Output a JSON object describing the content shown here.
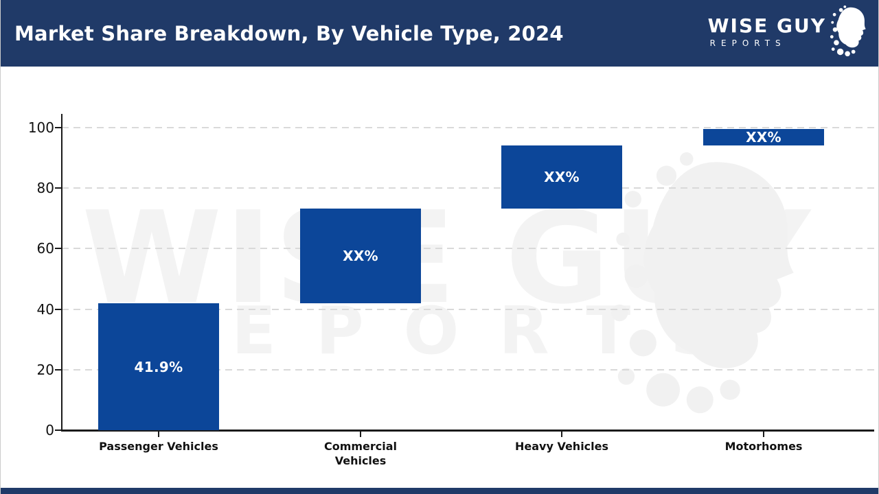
{
  "header": {
    "title": "Market Share Breakdown, By Vehicle Type, 2024",
    "title_color": "#ffffff",
    "bg_color": "#203a68",
    "logo": {
      "wordmark": "WISE GUY",
      "wordmark_sub": "REPORTS",
      "head_icon": "dotted-face-profile"
    }
  },
  "watermark": {
    "line1": "WISE GUY",
    "line2": "REPORTS",
    "color": "#f3f3f3",
    "head_icon": "dotted-face-profile"
  },
  "footer": {
    "bg_color": "#203a68"
  },
  "chart_data": {
    "type": "bar",
    "subtype": "waterfall",
    "title": "Market Share Breakdown, By Vehicle Type, 2024",
    "categories": [
      "Passenger Vehicles",
      "Commercial\nVehicles",
      "Heavy Vehicles",
      "Motorhomes"
    ],
    "series": [
      {
        "name": "Market share (%)",
        "segments": [
          {
            "category": "Passenger Vehicles",
            "start": 0,
            "end": 41.9,
            "label": "41.9%"
          },
          {
            "category": "Commercial Vehicles",
            "start": 41.9,
            "end": 73.2,
            "label": "XX%"
          },
          {
            "category": "Heavy Vehicles",
            "start": 73.2,
            "end": 94.1,
            "label": "XX%"
          },
          {
            "category": "Motorhomes",
            "start": 94.1,
            "end": 99.6,
            "label": "XX%"
          }
        ]
      }
    ],
    "xlabel": "",
    "ylabel": "",
    "yticks": [
      0,
      20,
      40,
      60,
      80,
      100
    ],
    "ylim": [
      0,
      108
    ],
    "grid": "horizontal-dashed",
    "legend": "none",
    "bar_color": "#0c4699",
    "bar_label_color": "#ffffff",
    "axis_color": "#1a1a1a",
    "gridline_color": "#d9d9d9",
    "tick_label_color": "#111111"
  }
}
